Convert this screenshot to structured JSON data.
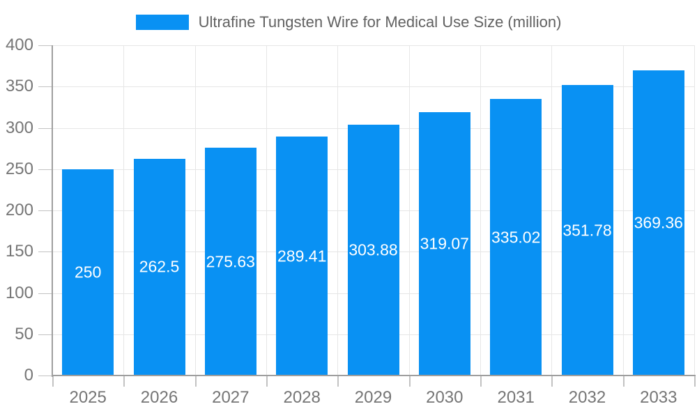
{
  "legend": {
    "label": "Ultrafine Tungsten Wire for Medical Use Size (million)"
  },
  "chart_data": {
    "type": "bar",
    "title": "Ultrafine Tungsten Wire for Medical Use Size (million)",
    "series_name": "Ultrafine Tungsten Wire for Medical Use Size (million)",
    "categories": [
      "2025",
      "2026",
      "2027",
      "2028",
      "2029",
      "2030",
      "2031",
      "2032",
      "2033"
    ],
    "values": [
      250,
      262.5,
      275.63,
      289.41,
      303.88,
      319.07,
      335.02,
      351.78,
      369.36
    ],
    "value_labels": [
      "250",
      "262.5",
      "275.63",
      "289.41",
      "303.88",
      "319.07",
      "335.02",
      "351.78",
      "369.36"
    ],
    "xlabel": "",
    "ylabel": "",
    "ylim": [
      0,
      400
    ],
    "yticks": [
      0,
      50,
      100,
      150,
      200,
      250,
      300,
      350,
      400
    ],
    "grid": true,
    "legend_position": "top"
  },
  "colors": {
    "bar": "#0991f3",
    "grid": "#e6e6e6",
    "axis": "#9e9e9e",
    "tick": "#c2c2c2",
    "axis_text": "#757575",
    "legend_text": "#616161",
    "bar_label": "#ffffff",
    "background": "#ffffff"
  }
}
